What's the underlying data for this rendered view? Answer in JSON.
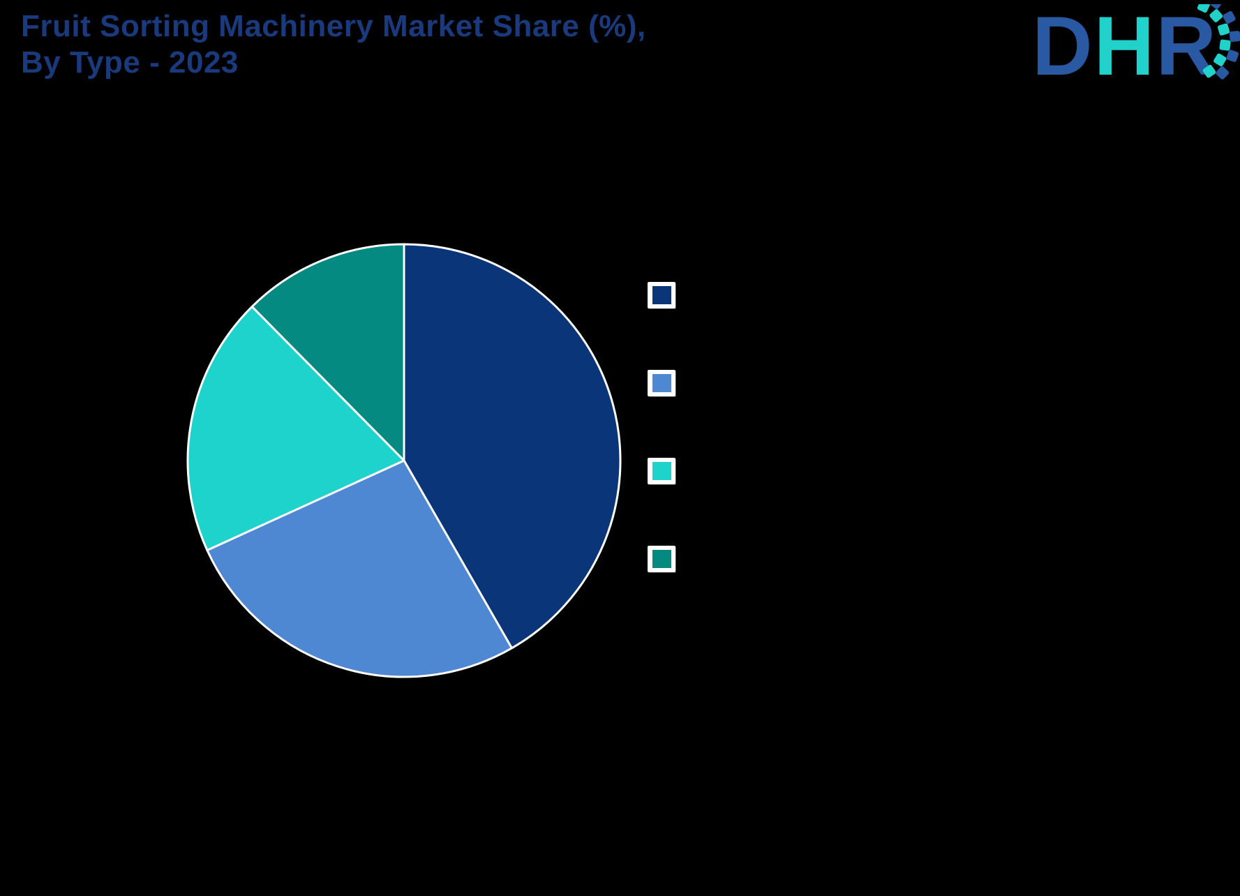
{
  "title": {
    "line1": "Fruit Sorting Machinery Market Share (%),",
    "line2": "By Type - 2023"
  },
  "logo": {
    "letters": [
      {
        "char": "D",
        "color_role": "blue"
      },
      {
        "char": "H",
        "color_role": "teal"
      },
      {
        "char": "R",
        "color_role": "blue"
      }
    ]
  },
  "colors": {
    "background": "#000000",
    "title": "#1a3a7e",
    "logo_blue": "#2a59a4",
    "logo_teal": "#21d2ca",
    "pie_stroke": "#ffffff",
    "swatch_box": "#ffffff"
  },
  "chart_data": {
    "type": "pie",
    "title": "Fruit Sorting Machinery Market Share (%), By Type - 2023",
    "unit": "%",
    "start_angle_deg": 0,
    "direction": "clockwise",
    "categories": [
      "",
      "",
      "",
      ""
    ],
    "values": [
      41.7,
      26.5,
      19.4,
      12.4
    ],
    "slice_colors": [
      "#0a3578",
      "#4e87d2",
      "#1dd3cb",
      "#058a82"
    ],
    "legend_position": "right",
    "data_labels_visible": false
  },
  "legend": {
    "items": [
      {
        "label": "",
        "color": "#0a3578"
      },
      {
        "label": "",
        "color": "#4e87d2"
      },
      {
        "label": "",
        "color": "#1dd3cb"
      },
      {
        "label": "",
        "color": "#058a82"
      }
    ]
  }
}
